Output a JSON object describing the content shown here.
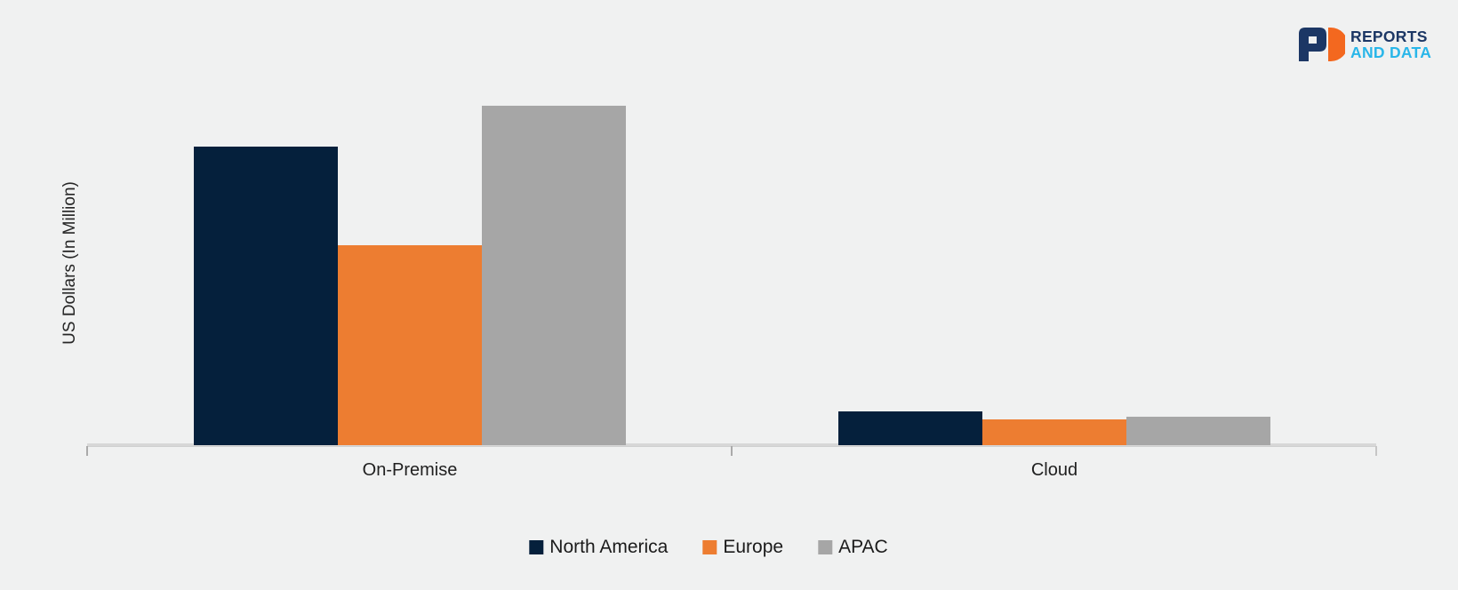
{
  "page": {
    "background": "#f0f1f1"
  },
  "logo": {
    "line1": "REPORTS",
    "line2": "AND DATA",
    "line1_color": "#1c3765",
    "line2_color": "#29b6e9",
    "mark_r_color": "#1c3765",
    "mark_d_color": "#f3681f"
  },
  "chart_data": {
    "type": "bar",
    "title": "",
    "xlabel": "",
    "ylabel": "US Dollars  (In Million)",
    "categories": [
      "On-Premise",
      "Cloud"
    ],
    "series": [
      {
        "name": "North America",
        "color": "#05203c",
        "values": [
          88,
          10
        ]
      },
      {
        "name": "Europe",
        "color": "#ed7d31",
        "values": [
          59,
          7.5
        ]
      },
      {
        "name": "APAC",
        "color": "#a6a6a6",
        "values": [
          100,
          8.5
        ]
      }
    ],
    "ylim": [
      0,
      105
    ],
    "grid": false,
    "legend_position": "bottom",
    "values_note": "axis shows no numeric tick labels; values are estimated relative heights (APAC On-Premise = 100)"
  }
}
